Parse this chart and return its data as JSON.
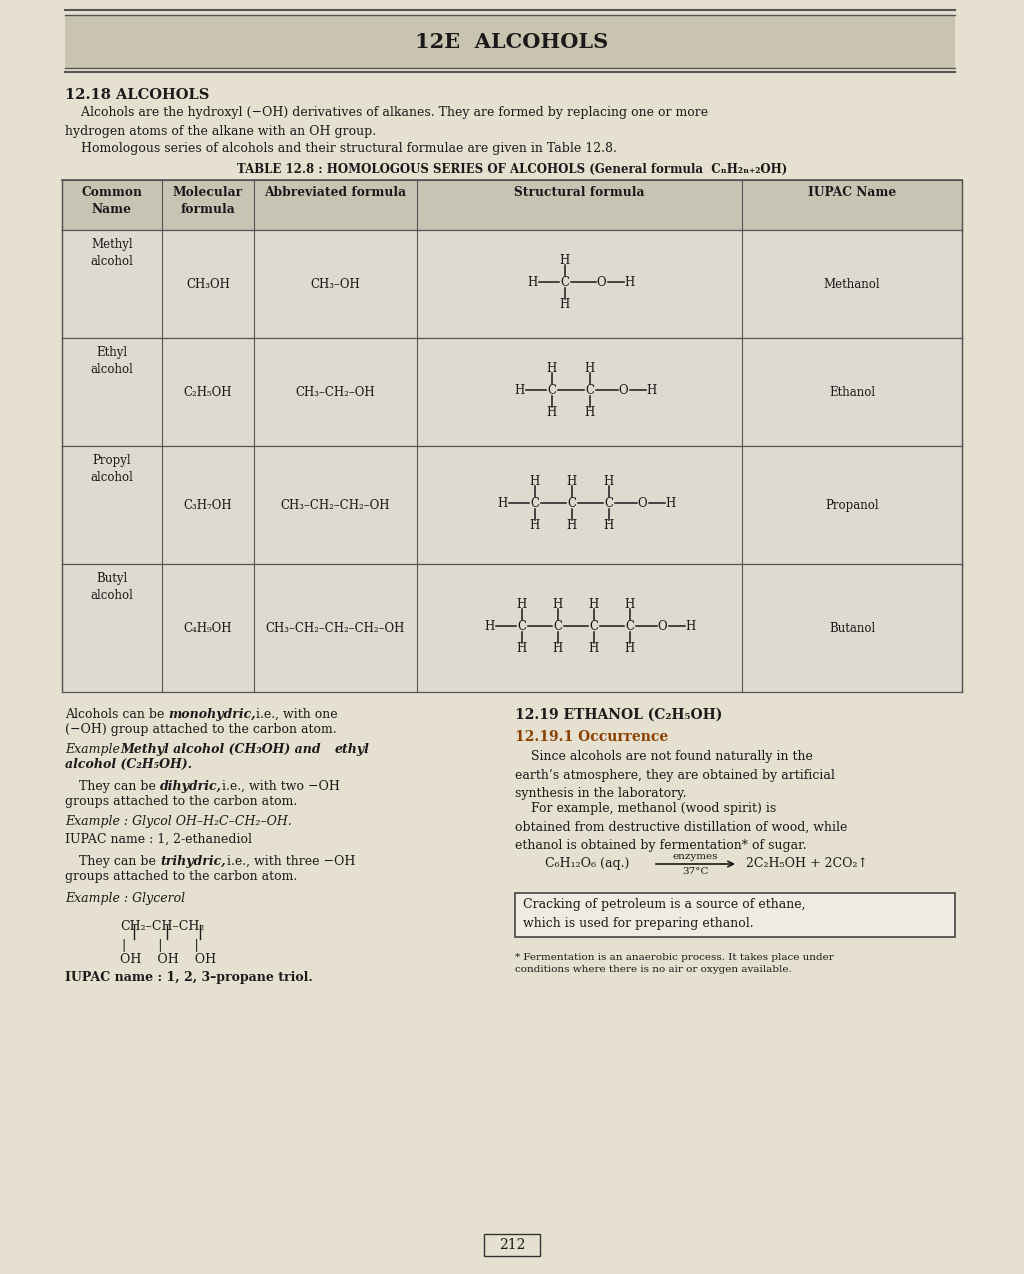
{
  "title": "12E  ALCOHOLS",
  "section_title": "12.18 ALCOHOLS",
  "para1": "    Alcohols are the hydroxyl (−OH) derivatives of alkanes. They are formed by replacing one or more\nhydrogen atoms of the alkane with an OH group.",
  "para2": "    Homologous series of alcohols and their structural formulae are given in Table 12.8.",
  "table_title": "TABLE 12.8 : HOMOLOGOUS SERIES OF ALCOHOLS (General formula  CₙH₂ₙ₊₂OH)",
  "col_headers": [
    "Common\nName",
    "Molecular\nformula",
    "Abbreviated formula",
    "Structural formula",
    "IUPAC Name"
  ],
  "rows": [
    {
      "common": "Methyl\nalcohol",
      "molecular": "CH₃OH",
      "abbreviated": "CH₃–OH",
      "iupac": "Methanol",
      "structural_type": "methanol"
    },
    {
      "common": "Ethyl\nalcohol",
      "molecular": "C₂H₅OH",
      "abbreviated": "CH₃–CH₂–OH",
      "iupac": "Ethanol",
      "structural_type": "ethanol"
    },
    {
      "common": "Propyl\nalcohol",
      "molecular": "C₃H₇OH",
      "abbreviated": "CH₃–CH₂–CH₂–OH",
      "iupac": "Propanol",
      "structural_type": "propanol"
    },
    {
      "common": "Butyl\nalcohol",
      "molecular": "C₄H₉OH",
      "abbreviated": "CH₃–CH₂–CH₂–CH₂–OH",
      "iupac": "Butanol",
      "structural_type": "butanol"
    }
  ],
  "right_col_title": "12.19 ETHANOL (C₂H₅OH)",
  "right_col_subtitle": "12.19.1 Occurrence",
  "right_col_para1": "    Since alcohols are not found naturally in the\nearth’s atmosphere, they are obtained by artificial\nsynthesis in the laboratory.",
  "right_col_para2": "    For example, methanol (wood spirit) is\nobtained from destructive distillation of wood, while\nethanol is obtained by fermentation* of sugar.",
  "enzymes_label": "enzymes",
  "temp_label": "37°C",
  "box_text": "Cracking of petroleum is a source of ethane,\nwhich is used for preparing ethanol.",
  "footnote": "* Fermentation is an anaerobic process. It takes place under\nconditions where there is no air or oxygen available.",
  "page_num": "212",
  "bg_color": "#e5e0d0",
  "header_bg": "#c8c4b0",
  "table_header_bg": "#c8c4b4",
  "table_cell_bg": "#dedad0",
  "line_color": "#555555"
}
